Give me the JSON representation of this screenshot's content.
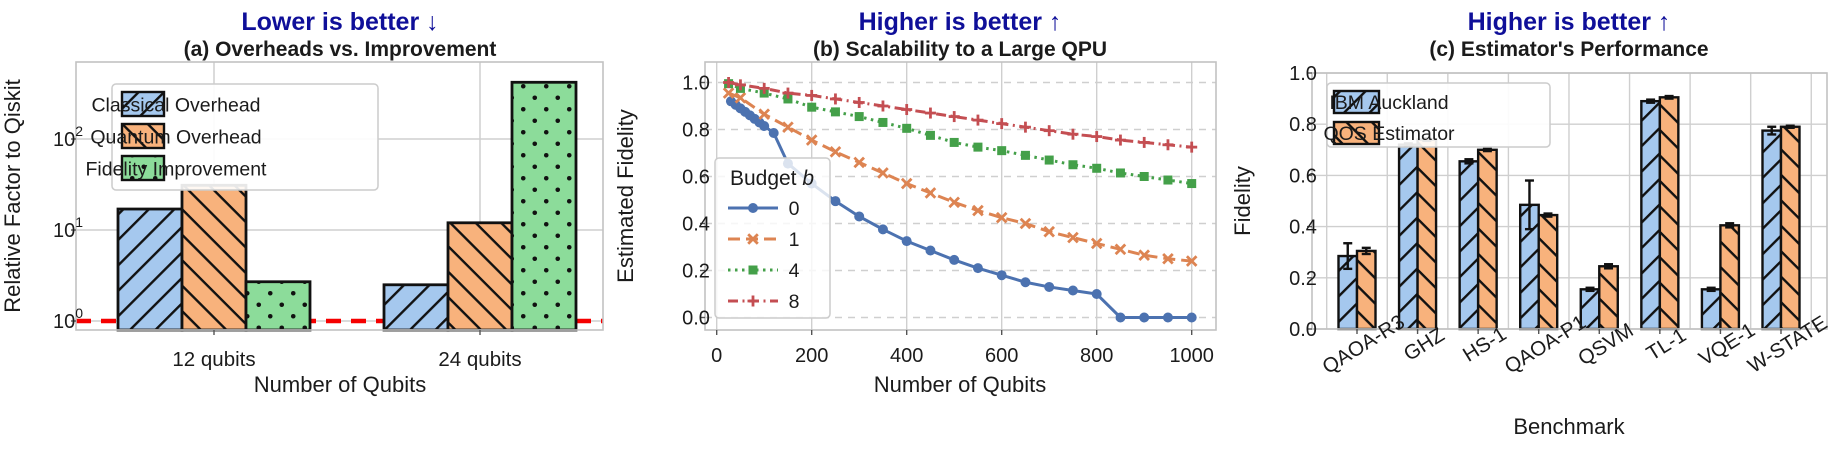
{
  "figure": {
    "background": "#ffffff",
    "accent_title_color": "#0f0f99",
    "bar_edge_color": "#111111",
    "grid_color": "#cfcfcf"
  },
  "chart_data": [
    {
      "type": "bar",
      "panel": "a",
      "suptitle": "Lower is better ↓",
      "title": "(a) Overheads vs. Improvement",
      "xlabel": "Number of Qubits",
      "ylabel": "Relative Factor to Qiskit",
      "yscale": "log",
      "ylim": [
        0.75,
        700
      ],
      "ytick_exponents": [
        0,
        1,
        2
      ],
      "categories": [
        "12 qubits",
        "24 qubits"
      ],
      "series": [
        {
          "name": "Classical Overhead",
          "color": "#a5c8ee",
          "hatch": "fwd",
          "values": [
            17,
            2.5
          ]
        },
        {
          "name": "Quantum Overhead",
          "color": "#f8b27c",
          "hatch": "bwd",
          "values": [
            31,
            12
          ]
        },
        {
          "name": "Fidelity Improvement",
          "color": "#8cdc9a",
          "hatch": "dot",
          "values": [
            2.7,
            420
          ]
        }
      ],
      "baseline": {
        "value": 1,
        "color": "#f50000",
        "style": "dashed"
      },
      "legend_position": "upper left",
      "grid": true
    },
    {
      "type": "line",
      "panel": "b",
      "suptitle": "Higher is better ↑",
      "title": "(b) Scalability to a Large QPU",
      "xlabel": "Number of Qubits",
      "ylabel": "Estimated Fidelity",
      "xlim": [
        -25,
        1050
      ],
      "ylim": [
        -0.05,
        1.08
      ],
      "xticks": [
        0,
        200,
        400,
        600,
        800,
        1000
      ],
      "yticks": [
        0,
        0.2,
        0.4,
        0.6,
        0.8,
        1
      ],
      "legend_title": "Budget",
      "legend_title_var": "b",
      "legend_position": "lower left",
      "grid": true,
      "series": [
        {
          "name": "0",
          "color": "#4c72b0",
          "marker": "circle",
          "dash": "solid",
          "x": [
            30,
            40,
            50,
            60,
            70,
            80,
            90,
            100,
            120,
            150,
            200,
            250,
            300,
            350,
            400,
            450,
            500,
            550,
            600,
            650,
            700,
            750,
            800,
            850,
            900,
            950,
            1000
          ],
          "y": [
            0.92,
            0.905,
            0.89,
            0.875,
            0.86,
            0.845,
            0.83,
            0.815,
            0.785,
            0.655,
            0.57,
            0.495,
            0.43,
            0.375,
            0.325,
            0.285,
            0.245,
            0.21,
            0.18,
            0.15,
            0.13,
            0.115,
            0.1,
            0.0,
            0.0,
            0.0,
            0.0
          ]
        },
        {
          "name": "1",
          "color": "#dd8452",
          "marker": "x",
          "dash": "dashed",
          "x": [
            25,
            50,
            100,
            150,
            200,
            250,
            300,
            350,
            400,
            450,
            500,
            550,
            600,
            650,
            700,
            750,
            800,
            850,
            900,
            950,
            1000
          ],
          "y": [
            0.955,
            0.935,
            0.865,
            0.81,
            0.755,
            0.705,
            0.66,
            0.615,
            0.57,
            0.53,
            0.49,
            0.455,
            0.425,
            0.4,
            0.365,
            0.34,
            0.315,
            0.29,
            0.265,
            0.25,
            0.24
          ]
        },
        {
          "name": "4",
          "color": "#44a049",
          "marker": "square",
          "dash": "dotted",
          "x": [
            25,
            50,
            100,
            150,
            200,
            250,
            300,
            350,
            400,
            450,
            500,
            550,
            600,
            650,
            700,
            750,
            800,
            850,
            900,
            950,
            1000
          ],
          "y": [
            0.995,
            0.975,
            0.955,
            0.93,
            0.895,
            0.875,
            0.855,
            0.83,
            0.805,
            0.775,
            0.745,
            0.725,
            0.71,
            0.69,
            0.67,
            0.65,
            0.635,
            0.615,
            0.6,
            0.585,
            0.57
          ]
        },
        {
          "name": "8",
          "color": "#c44e52",
          "marker": "plus",
          "dash": "dashdot",
          "x": [
            25,
            50,
            100,
            150,
            200,
            250,
            300,
            350,
            400,
            450,
            500,
            550,
            600,
            650,
            700,
            750,
            800,
            850,
            900,
            950,
            1000
          ],
          "y": [
            1.0,
            0.99,
            0.975,
            0.955,
            0.945,
            0.93,
            0.915,
            0.9,
            0.885,
            0.87,
            0.855,
            0.84,
            0.825,
            0.81,
            0.795,
            0.78,
            0.77,
            0.755,
            0.745,
            0.735,
            0.725
          ]
        }
      ]
    },
    {
      "type": "bar",
      "panel": "c",
      "suptitle": "Higher is better ↑",
      "title": "(c) Estimator's Performance",
      "xlabel": "Benchmark",
      "ylabel": "Fidelity",
      "ylim": [
        0,
        1.0
      ],
      "yticks": [
        0,
        0.2,
        0.4,
        0.6,
        0.8,
        1
      ],
      "categories": [
        "QAOA-R3",
        "GHZ",
        "HS-1",
        "QAOA-P1",
        "QSVM",
        "TL-1",
        "VQE-1",
        "W-STATE"
      ],
      "legend_position": "upper left",
      "grid": true,
      "series": [
        {
          "name": "IBM Auckland",
          "color": "#a5c8ee",
          "hatch": "fwd",
          "values": [
            0.285,
            0.72,
            0.655,
            0.485,
            0.155,
            0.89,
            0.155,
            0.775
          ],
          "errors": [
            0.05,
            0.005,
            0.008,
            0.095,
            0.006,
            0.006,
            0.006,
            0.015
          ]
        },
        {
          "name": "QOS Estimator",
          "color": "#f8b27c",
          "hatch": "bwd",
          "values": [
            0.305,
            0.74,
            0.7,
            0.445,
            0.245,
            0.905,
            0.405,
            0.79
          ],
          "errors": [
            0.012,
            0.005,
            0.005,
            0.006,
            0.008,
            0.005,
            0.008,
            0.004
          ]
        }
      ]
    }
  ]
}
